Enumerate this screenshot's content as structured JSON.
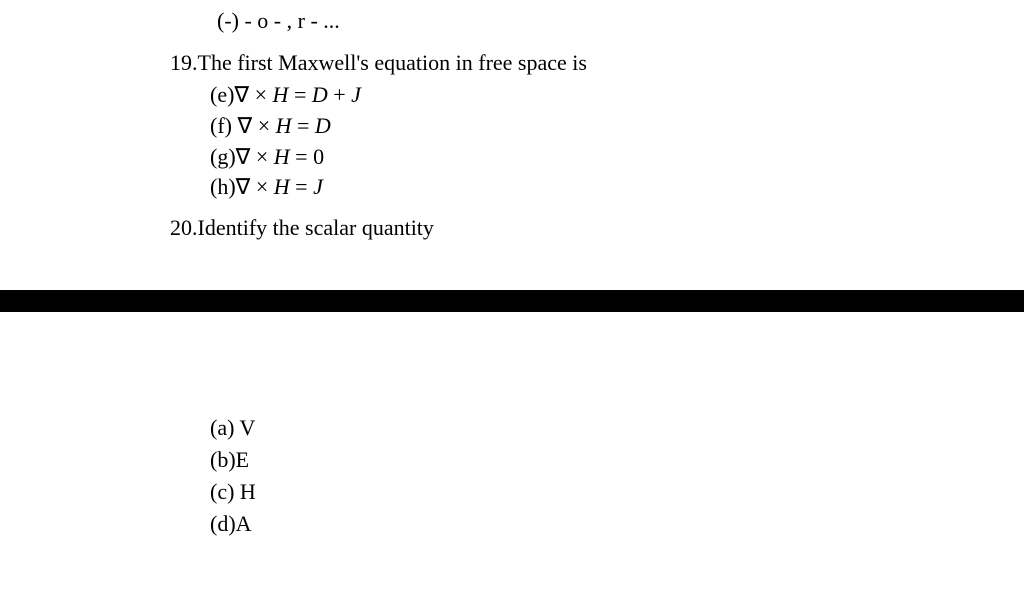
{
  "fragment": "(-) - o - , r - ...",
  "q19": {
    "number": "19.",
    "title": "The first Maxwell's equation  in free space  is",
    "options": {
      "e": {
        "label": "(e)",
        "lhs": "∇ × ",
        "var1": "H",
        "eq": " = ",
        "var2": "D",
        "plus": " + ",
        "var3": "J"
      },
      "f": {
        "label": "(f)",
        "lhs": " ∇ × ",
        "var1": "H",
        "eq": " = ",
        "var2": "D"
      },
      "g": {
        "label": "(g)",
        "lhs": "∇ × ",
        "var1": "H",
        "eq": " = 0"
      },
      "h": {
        "label": "(h)",
        "lhs": "∇ × ",
        "var1": "H",
        "eq": " = ",
        "var2": "J"
      }
    }
  },
  "q20": {
    "number": "20.",
    "title": "Identify the scalar quantity",
    "options": {
      "a": {
        "label": "(a)",
        "text": " V"
      },
      "b": {
        "label": "(b)",
        "text": "E"
      },
      "c": {
        "label": "(c)",
        "text": " H"
      },
      "d": {
        "label": "(d)",
        "text": "A"
      }
    }
  },
  "colors": {
    "text": "#000000",
    "background": "#ffffff",
    "divider": "#000000"
  },
  "typography": {
    "base_fontsize": 22,
    "font_family": "Times New Roman"
  }
}
